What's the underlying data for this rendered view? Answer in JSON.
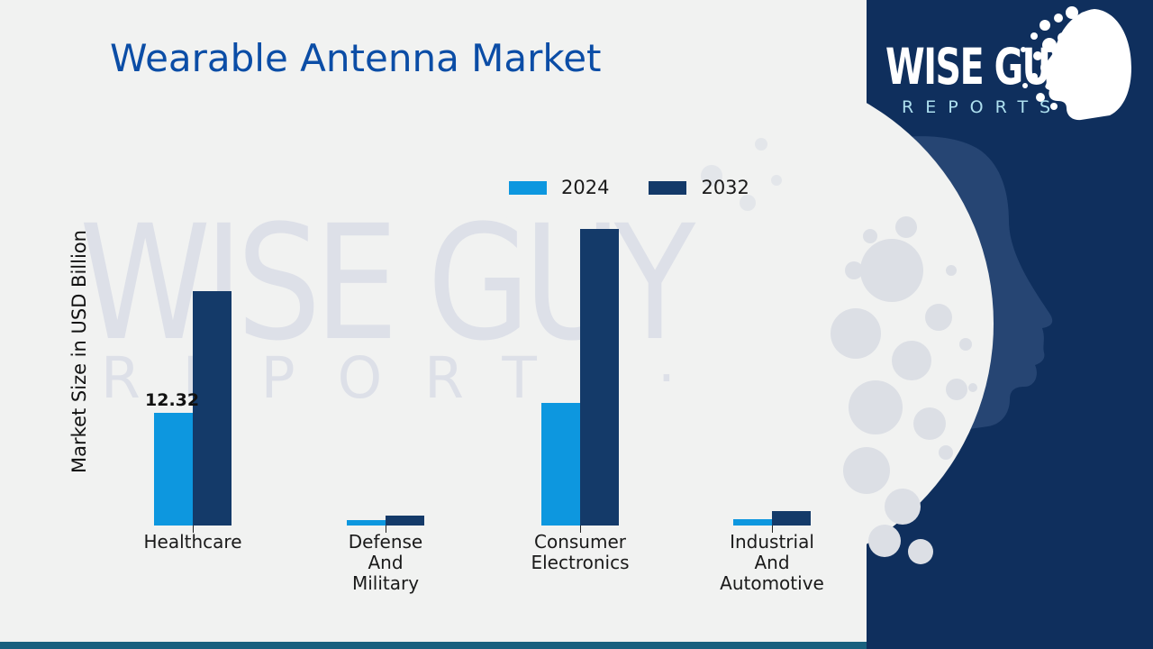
{
  "page": {
    "background": "#f1f2f1",
    "accent_bar_color": "#19607F",
    "brand_panel_color": "#0F2F5D"
  },
  "title": "Wearable Antenna Market",
  "title_color": "#0B4DA6",
  "y_axis_label": "Market Size in USD Billion",
  "legend": {
    "items": [
      {
        "label": "2024",
        "color": "#0D97DF"
      },
      {
        "label": "2032",
        "color": "#143A69"
      }
    ]
  },
  "watermark": {
    "line1": "WISE GUY",
    "line2": "REPORTS·"
  },
  "logo": {
    "line1": "WISE GUY",
    "line2": "REPORTS"
  },
  "chart_data": {
    "type": "bar",
    "title": "Wearable Antenna Market",
    "ylabel": "Market Size in USD Billion",
    "xlabel": "",
    "categories": [
      "Healthcare",
      "Defense And Military",
      "Consumer Electronics",
      "Industrial And Automotive"
    ],
    "categories_display": [
      [
        "Healthcare"
      ],
      [
        "Defense",
        "And",
        "Military"
      ],
      [
        "Consumer",
        "Electronics"
      ],
      [
        "Industrial",
        "And",
        "Automotive"
      ]
    ],
    "series": [
      {
        "name": "2024",
        "color": "#0D97DF",
        "values": [
          12.32,
          0.6,
          13.4,
          0.7
        ]
      },
      {
        "name": "2032",
        "color": "#143A69",
        "values": [
          25.6,
          1.1,
          32.4,
          1.6
        ]
      }
    ],
    "annotations": [
      {
        "series": "2024",
        "category": "Healthcare",
        "text": "12.32"
      }
    ],
    "axes": {
      "y_axis_visible": false,
      "x_axis_line_visible": false,
      "tick_marks": true
    },
    "legend_position": "top-center",
    "grid": false
  }
}
